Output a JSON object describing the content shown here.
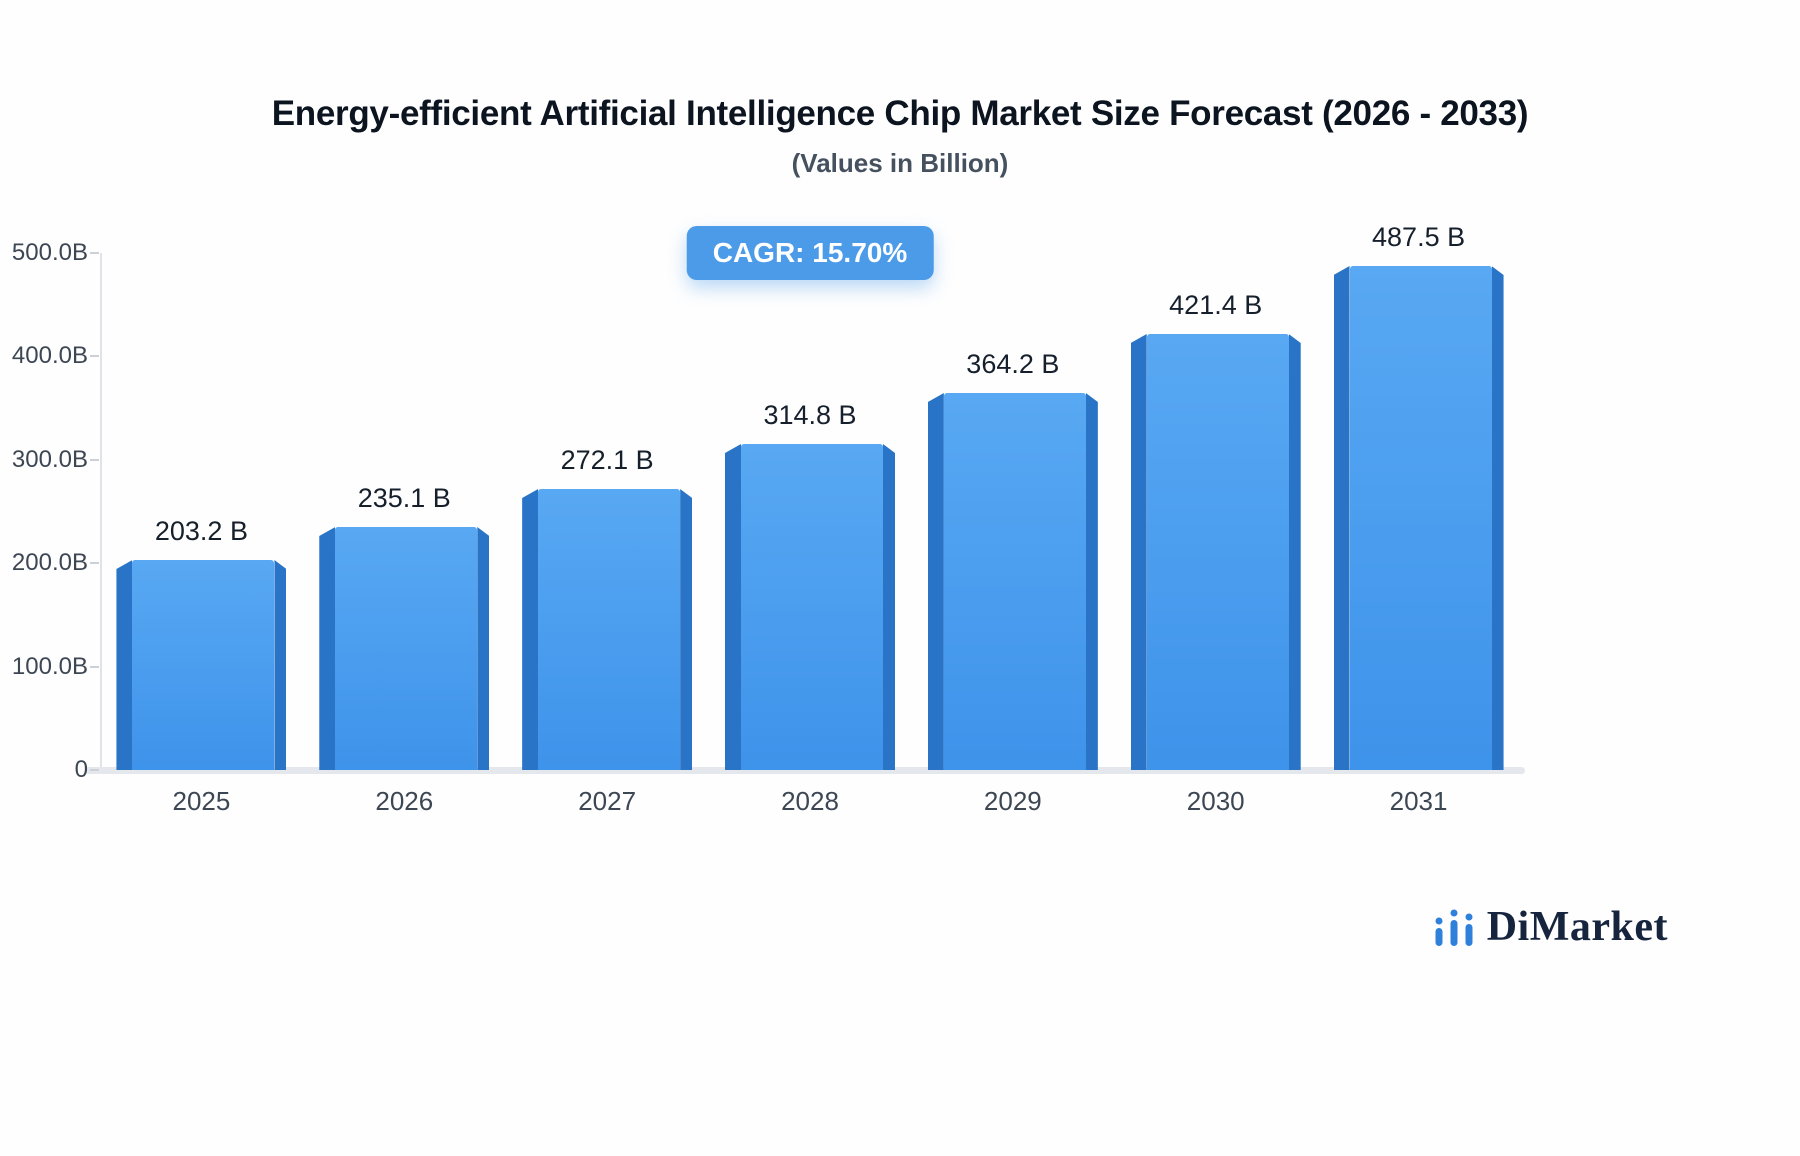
{
  "page": {
    "title": "Energy-efficient Artificial Intelligence Chip Market Size Forecast (2026 - 2033)",
    "subtitle": "(Values in Billion)",
    "badge": "CAGR: 15.70%"
  },
  "brand": {
    "name": "DiMarket",
    "logo_icon": "bar-chart-icon"
  },
  "colors": {
    "bar_face_top": "#58A8F3",
    "bar_face_bottom": "#3E93EA",
    "bar_side": "#2A74C8",
    "badge_bg": "#4C9BE9",
    "axis_text": "#3D4754",
    "value_text": "#16202C",
    "baseline": "#E4E7EB",
    "brand_blue": "#2F80DB",
    "brand_text": "#16243E"
  },
  "chart_data": {
    "type": "bar",
    "title": "Energy-efficient Artificial Intelligence Chip Market Size Forecast (2026 - 2033)",
    "subtitle": "(Values in Billion)",
    "annotation": "CAGR: 15.70%",
    "categories": [
      "2025",
      "2026",
      "2027",
      "2028",
      "2029",
      "2030",
      "2031"
    ],
    "values": [
      203.2,
      235.1,
      272.1,
      314.8,
      364.2,
      421.4,
      487.5
    ],
    "value_labels": [
      "203.2 B",
      "235.1 B",
      "272.1 B",
      "314.8 B",
      "364.2 B",
      "421.4 B",
      "487.5 B"
    ],
    "ylim": [
      0,
      500
    ],
    "yticks": [
      0,
      100,
      200,
      300,
      400,
      500
    ],
    "ytick_labels": [
      "0",
      "100.0B",
      "200.0B",
      "300.0B",
      "400.0B",
      "500.0B"
    ],
    "grid": false,
    "legend": false
  }
}
